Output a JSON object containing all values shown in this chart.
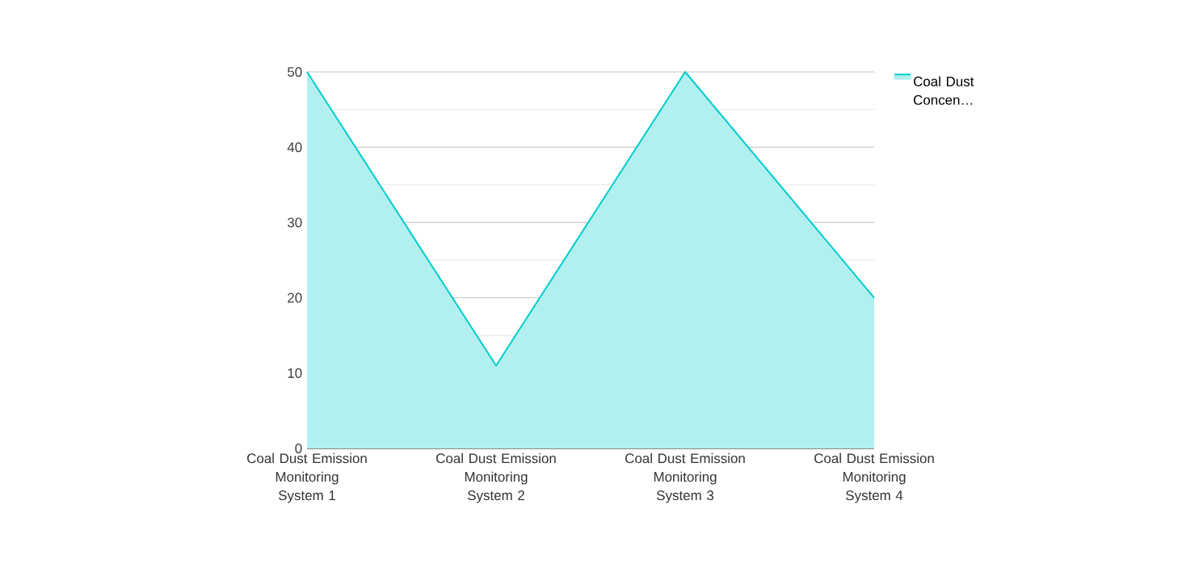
{
  "chart_data": {
    "type": "area",
    "categories": [
      "Coal Dust Emission Monitoring System 1",
      "Coal Dust Emission Monitoring System 2",
      "Coal Dust Emission Monitoring System 3",
      "Coal Dust Emission Monitoring System 4"
    ],
    "series": [
      {
        "name": "Coal Dust Concen…",
        "color": "#00cccc",
        "values": [
          50,
          11,
          50,
          20
        ]
      }
    ],
    "ylim": [
      0,
      50
    ],
    "yticks": [
      0,
      {
        "value": 5,
        "label": null
      },
      10,
      {
        "value": 15,
        "label": null
      },
      20,
      {
        "value": 25,
        "label": null
      },
      30,
      {
        "value": 35,
        "label": null
      },
      40,
      {
        "value": 45,
        "label": null
      },
      50
    ],
    "grid": "y",
    "legend": "top right"
  }
}
